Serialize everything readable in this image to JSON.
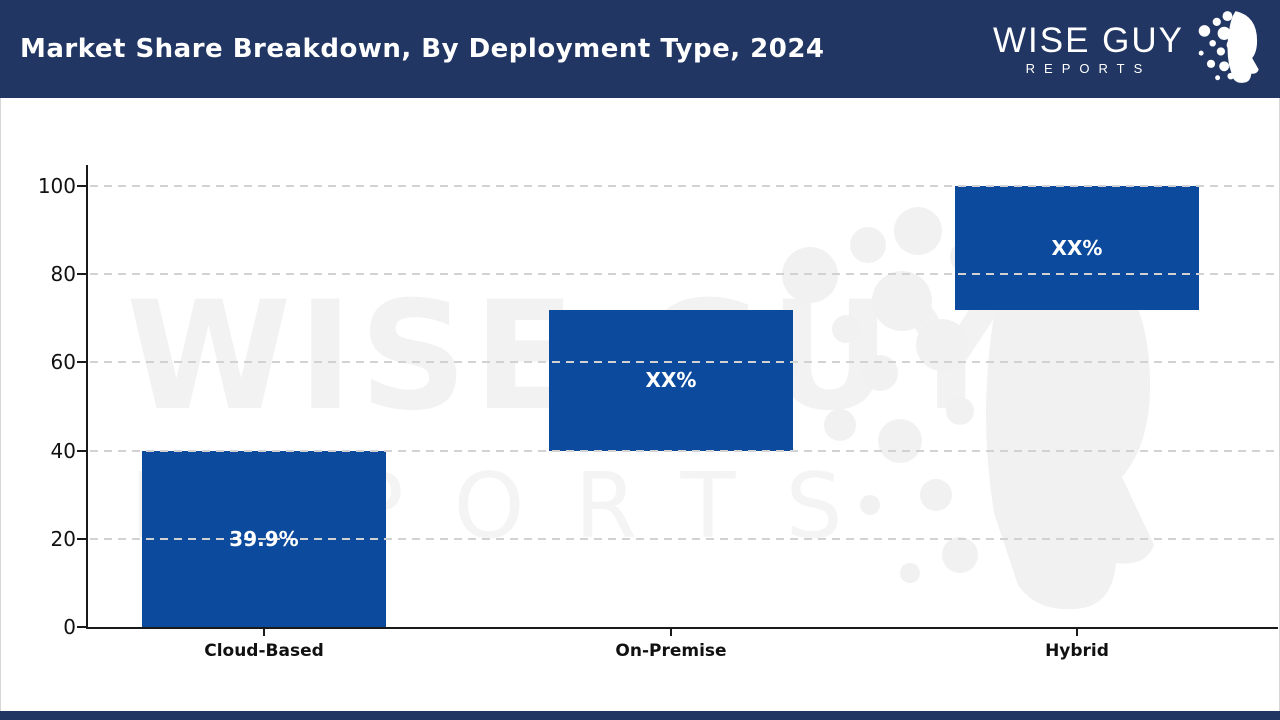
{
  "header": {
    "title": "Market Share Breakdown, By Deployment Type, 2024",
    "logo": {
      "wordmark": "WISE GUY",
      "tagline": "REPORTS"
    }
  },
  "watermark": {
    "wordmark": "WISE GUY",
    "tagline": "REPORTS"
  },
  "chart_data": {
    "type": "bar",
    "subtype": "waterfall-segments",
    "title": "Market Share Breakdown, By Deployment Type, 2024",
    "categories": [
      "Cloud-Based",
      "On-Premise",
      "Hybrid"
    ],
    "segments": [
      {
        "category": "Cloud-Based",
        "start": 0,
        "end": 39.9,
        "label": "39.9%"
      },
      {
        "category": "On-Premise",
        "start": 39.9,
        "end": 71.9,
        "label": "XX%"
      },
      {
        "category": "Hybrid",
        "start": 71.9,
        "end": 100,
        "label": "XX%"
      }
    ],
    "xlabel": "",
    "ylabel": "",
    "ylim": [
      0,
      100
    ],
    "yticks": [
      0,
      20,
      40,
      60,
      80,
      100
    ],
    "grid": "horizontal-dashed",
    "legend": "none",
    "bar_color": "#0c4a9e",
    "bar_label_color": "#ffffff"
  },
  "colors": {
    "header_bg": "#213663",
    "footer_bg": "#213663",
    "axis": "#1a1a1a",
    "grid": "#d2d2d2",
    "watermark": "#f2f2f2",
    "page_bg": "#ffffff"
  }
}
